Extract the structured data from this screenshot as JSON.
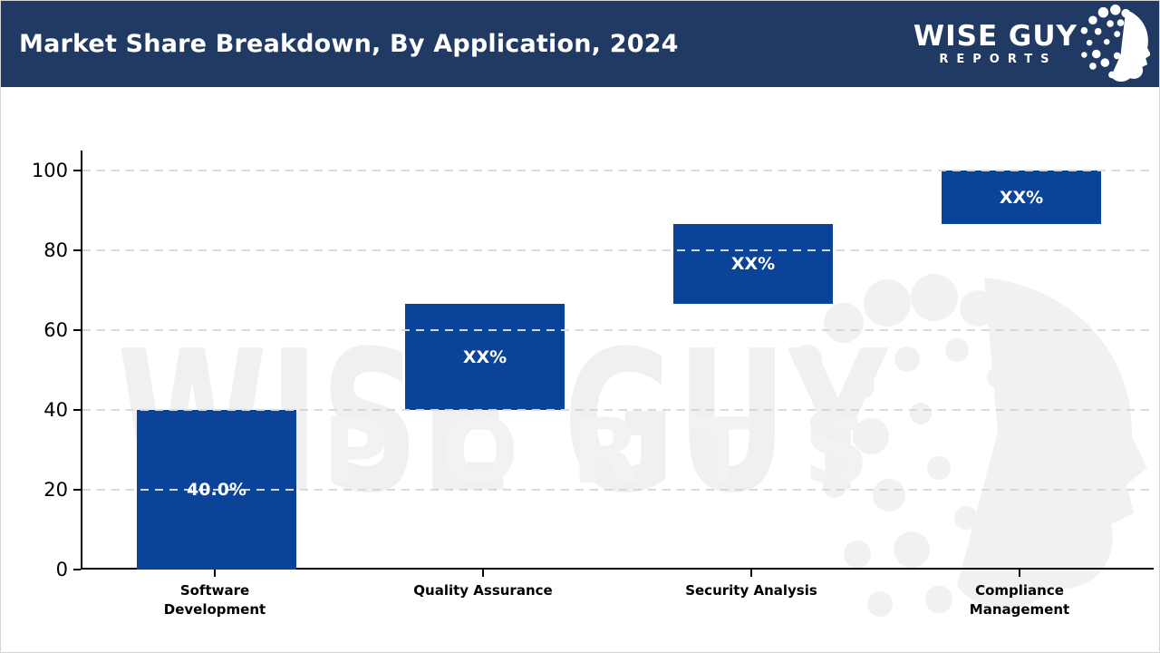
{
  "header": {
    "title": "Market Share Breakdown, By Application, 2024",
    "brand": {
      "name": "WISE GUY",
      "tagline": "REPORTS"
    }
  },
  "watermark": {
    "line1": "WISE GUY",
    "line2": "PORTS"
  },
  "chart_data": {
    "type": "bar",
    "subtype": "floating-waterfall",
    "title": "Market Share Breakdown, By Application, 2024",
    "categories": [
      "Software Development",
      "Quality Assurance",
      "Security Analysis",
      "Compliance Management"
    ],
    "category_lines": [
      [
        "Software",
        "Development"
      ],
      [
        "Quality Assurance"
      ],
      [
        "Security Analysis"
      ],
      [
        "Compliance",
        "Management"
      ]
    ],
    "segments": [
      {
        "category": "Software Development",
        "start": 0,
        "end": 40,
        "label": "40.0%"
      },
      {
        "category": "Quality Assurance",
        "start": 40,
        "end": 66.5,
        "label": "XX%"
      },
      {
        "category": "Security Analysis",
        "start": 66.5,
        "end": 86.5,
        "label": "XX%"
      },
      {
        "category": "Compliance Management",
        "start": 86.5,
        "end": 100,
        "label": "XX%"
      }
    ],
    "xlabel": "",
    "ylabel": "",
    "yticks": [
      0,
      20,
      40,
      60,
      80,
      100
    ],
    "ylim": [
      0,
      105
    ],
    "grid": "horizontal-dashed-over-bars",
    "legend": "none",
    "bar_color": "#0b4398",
    "bar_label_color": "#ffffff"
  },
  "colors": {
    "header_bg": "#213a63",
    "bar": "#0b4398",
    "grid": "#d9d9d9",
    "watermark": "#f0f0f0",
    "axis": "#000000",
    "page_border": "#d6d6d6"
  }
}
